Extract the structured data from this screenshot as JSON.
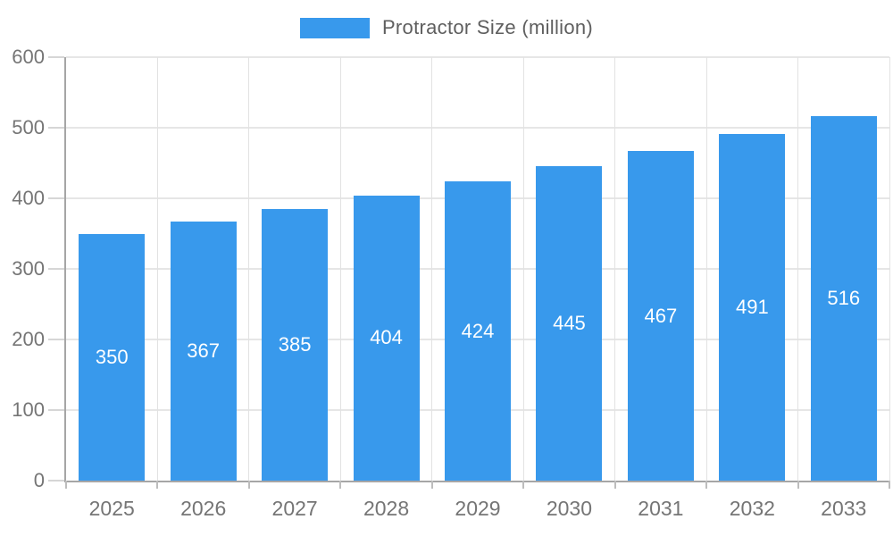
{
  "chart_data": {
    "type": "bar",
    "title": "Protractor Size (million)",
    "legend_position": "top",
    "categories": [
      "2025",
      "2026",
      "2027",
      "2028",
      "2029",
      "2030",
      "2031",
      "2032",
      "2033"
    ],
    "values": [
      350,
      367,
      385,
      404,
      424,
      445,
      467,
      491,
      516
    ],
    "xlabel": "",
    "ylabel": "",
    "ylim": [
      0,
      600
    ],
    "ytick_step": 100,
    "ytick_labels": [
      "0",
      "100",
      "200",
      "300",
      "400",
      "500",
      "600"
    ],
    "grid": true,
    "bar_color": "#3899ec",
    "value_label_color": "#ffffff",
    "axis_line_color": "#a6a6a6",
    "gridline_color": "#e6e6e6",
    "tick_label_color": "#757575",
    "legend_text_color": "#5f5f5f",
    "background_color": "#ffffff"
  }
}
